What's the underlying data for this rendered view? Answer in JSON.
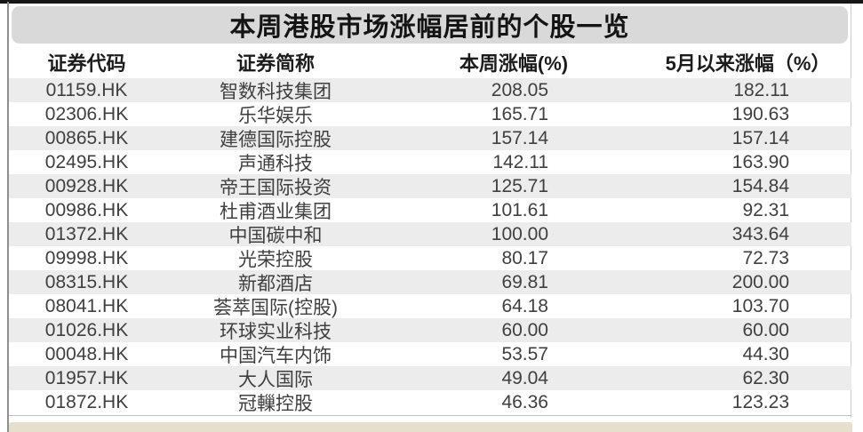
{
  "title": "本周港股市场涨幅居前的个股一览",
  "table": {
    "columns": [
      "证券代码",
      "证券简称",
      "本周涨幅(%)",
      "5月以来涨幅（%）"
    ],
    "rows": [
      {
        "code": "01159.HK",
        "name": "智数科技集团",
        "week_change": "208.05",
        "since_may_change": "182.11"
      },
      {
        "code": "02306.HK",
        "name": "乐华娱乐",
        "week_change": "165.71",
        "since_may_change": "190.63"
      },
      {
        "code": "00865.HK",
        "name": "建德国际控股",
        "week_change": "157.14",
        "since_may_change": "157.14"
      },
      {
        "code": "02495.HK",
        "name": "声通科技",
        "week_change": "142.11",
        "since_may_change": "163.90"
      },
      {
        "code": "00928.HK",
        "name": "帝王国际投资",
        "week_change": "125.71",
        "since_may_change": "154.84"
      },
      {
        "code": "00986.HK",
        "name": "杜甫酒业集团",
        "week_change": "101.61",
        "since_may_change": "92.31"
      },
      {
        "code": "01372.HK",
        "name": "中国碳中和",
        "week_change": "100.00",
        "since_may_change": "343.64"
      },
      {
        "code": "09998.HK",
        "name": "光荣控股",
        "week_change": "80.17",
        "since_may_change": "72.73"
      },
      {
        "code": "08315.HK",
        "name": "新都酒店",
        "week_change": "69.81",
        "since_may_change": "200.00"
      },
      {
        "code": "08041.HK",
        "name": "荟萃国际(控股)",
        "week_change": "64.18",
        "since_may_change": "103.70"
      },
      {
        "code": "01026.HK",
        "name": "环球实业科技",
        "week_change": "60.00",
        "since_may_change": "60.00"
      },
      {
        "code": "00048.HK",
        "name": "中国汽车内饰",
        "week_change": "53.57",
        "since_may_change": "44.30"
      },
      {
        "code": "01957.HK",
        "name": "大人国际",
        "week_change": "49.04",
        "since_may_change": "62.30"
      },
      {
        "code": "01872.HK",
        "name": "冠轈控股",
        "week_change": "46.36",
        "since_may_change": "123.23"
      }
    ]
  },
  "chart_data": {
    "type": "table",
    "title": "本周港股市场涨幅居前的个股一览",
    "columns": [
      "证券代码",
      "证券简称",
      "本周涨幅(%)",
      "5月以来涨幅（%）"
    ],
    "rows": [
      [
        "01159.HK",
        "智数科技集团",
        208.05,
        182.11
      ],
      [
        "02306.HK",
        "乐华娱乐",
        165.71,
        190.63
      ],
      [
        "00865.HK",
        "建德国际控股",
        157.14,
        157.14
      ],
      [
        "02495.HK",
        "声通科技",
        142.11,
        163.9
      ],
      [
        "00928.HK",
        "帝王国际投资",
        125.71,
        154.84
      ],
      [
        "00986.HK",
        "杜甫酒业集团",
        101.61,
        92.31
      ],
      [
        "01372.HK",
        "中国碳中和",
        100.0,
        343.64
      ],
      [
        "09998.HK",
        "光荣控股",
        80.17,
        72.73
      ],
      [
        "08315.HK",
        "新都酒店",
        69.81,
        200.0
      ],
      [
        "08041.HK",
        "荟萃国际(控股)",
        64.18,
        103.7
      ],
      [
        "01026.HK",
        "环球实业科技",
        60.0,
        60.0
      ],
      [
        "00048.HK",
        "中国汽车内饰",
        53.57,
        44.3
      ],
      [
        "01957.HK",
        "大人国际",
        49.04,
        62.3
      ],
      [
        "01872.HK",
        "冠轈控股",
        46.36,
        123.23
      ]
    ]
  },
  "colors": {
    "title_bar": "#d9d9d9",
    "row_alt": "#ececec",
    "frame_top": "#161616",
    "bottom_bar": "#e4e0cc"
  }
}
